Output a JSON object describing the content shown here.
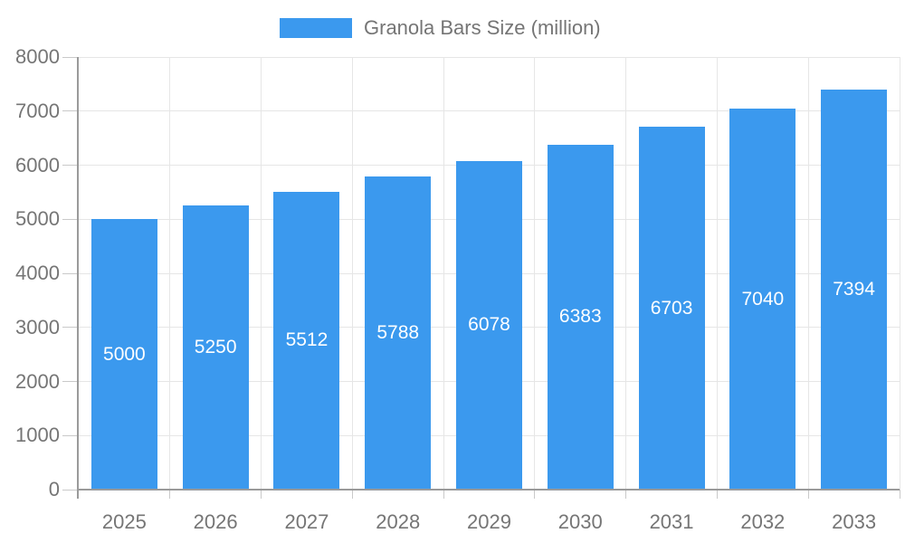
{
  "chart_data": {
    "type": "bar",
    "title": "Granola Bars Size (million)",
    "xlabel": "",
    "ylabel": "",
    "categories": [
      "2025",
      "2026",
      "2027",
      "2028",
      "2029",
      "2030",
      "2031",
      "2032",
      "2033"
    ],
    "values": [
      5000,
      5250,
      5512,
      5788,
      6078,
      6383,
      6703,
      7040,
      7394
    ],
    "ylim": [
      0,
      8000
    ],
    "ytick_step": 1000,
    "ytick_labels": [
      "0",
      "1000",
      "2000",
      "3000",
      "4000",
      "5000",
      "6000",
      "7000",
      "8000"
    ],
    "grid": true,
    "legend_position": "top",
    "bar_labels_shown": true
  },
  "colors": {
    "bar": "#3B99EE",
    "axis_text": "#757575",
    "grid": "#E6E6E6",
    "axis_line": "#9A9A9A",
    "tick": "#C9C9C9",
    "bar_value_text": "#FFFFFF",
    "background": "#FFFFFF"
  }
}
